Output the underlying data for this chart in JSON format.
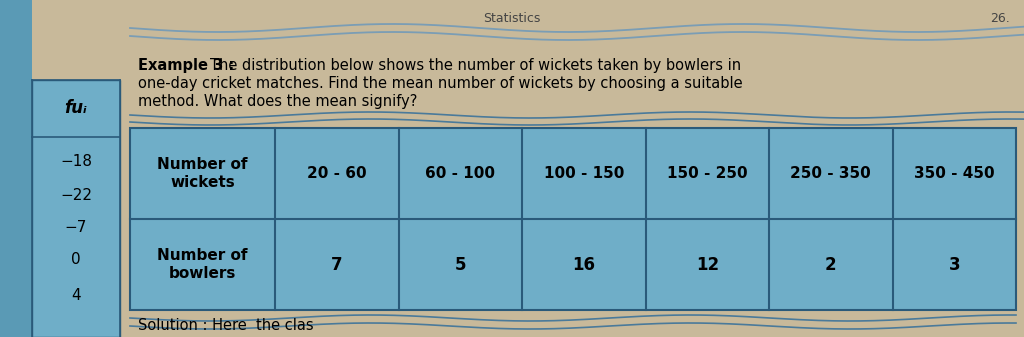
{
  "page_bg": "#c8b99a",
  "table_bg": "#6faec8",
  "table_bg_light": "#88c0d8",
  "table_border": "#2a5a7a",
  "sidebar_bg": "#6faec8",
  "sidebar2_bg": "#88bdd0",
  "statistics_text": "Statistics",
  "page_num": "26.",
  "example_bold": "Example 3 : ",
  "example_rest1": "The distribution below shows the number of wickets taken by bowlers in",
  "title_line2": "one-day cricket matches. Find the mean number of wickets by choosing a suitable",
  "title_line3": "method. What does the mean signify?",
  "col_headers": [
    "Number of\nwickets",
    "20 - 60",
    "60 - 100",
    "100 - 150",
    "150 - 250",
    "250 - 350",
    "350 - 450"
  ],
  "row2_label": "Number of\nbowlers",
  "row2_values": [
    "7",
    "5",
    "16",
    "12",
    "2",
    "3"
  ],
  "sidebar_label": "fuᵢ",
  "sidebar_values": [
    "−18",
    "−22",
    "−7",
    "0",
    "4"
  ],
  "solution_text": "Solution : Here  the clas",
  "font_size_title": 10.5,
  "font_size_table": 11,
  "font_size_sidebar": 11
}
